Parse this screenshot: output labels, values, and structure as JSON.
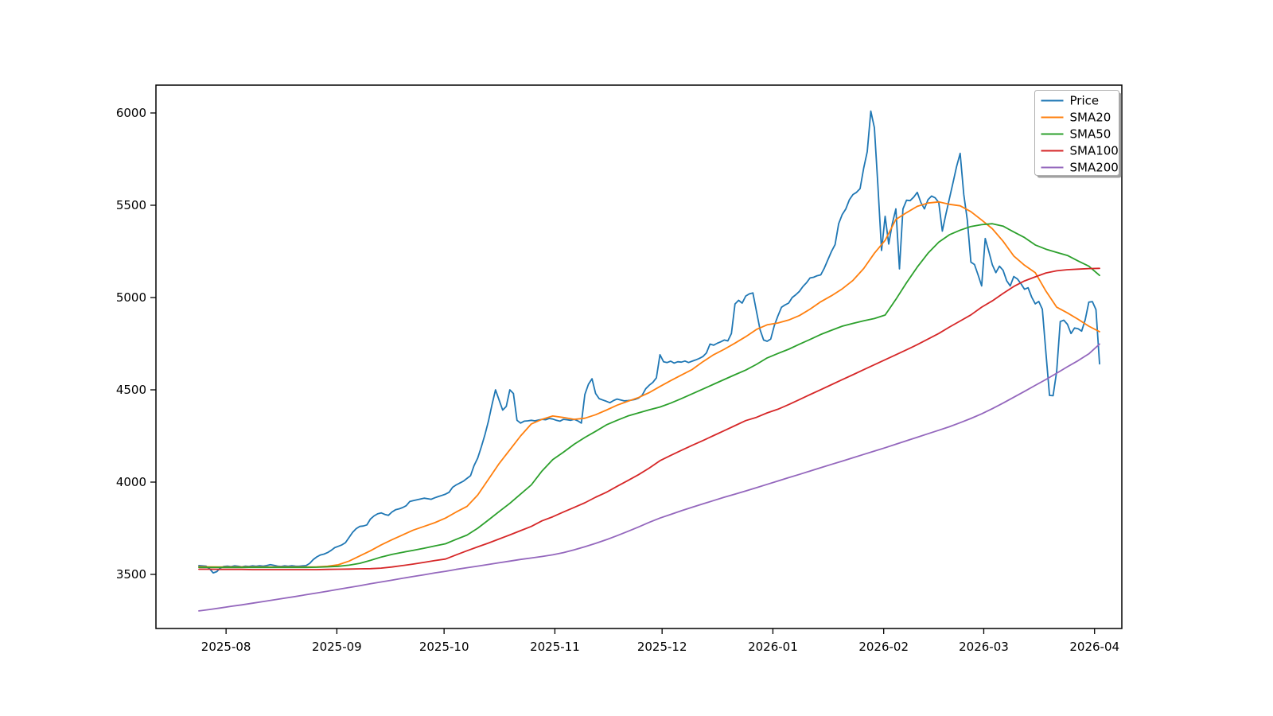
{
  "chart_data": {
    "type": "line",
    "title": "",
    "xlabel": "",
    "ylabel": "",
    "grid": false,
    "x_axis": {
      "tick_labels": [
        "2025-08",
        "2025-09",
        "2025-10",
        "2025-11",
        "2025-12",
        "2026-01",
        "2026-02",
        "2026-03",
        "2026-04"
      ],
      "tick_days": [
        7.6,
        38.6,
        68.6,
        99.6,
        129.6,
        160.6,
        191.6,
        219.6,
        250.6
      ]
    },
    "y_axis": {
      "tick_labels": [
        "3500",
        "4000",
        "4500",
        "5000",
        "5500",
        "6000"
      ],
      "tick_values": [
        3500,
        4000,
        4500,
        5000,
        5500,
        6000
      ],
      "range": [
        3207,
        6151
      ]
    },
    "legend": {
      "position": "upper-right",
      "entries": [
        "Price",
        "SMA20",
        "SMA50",
        "SMA100",
        "SMA200"
      ]
    },
    "colors": {
      "price": "#1f77b4",
      "sma20": "#ff7f0e",
      "sma50": "#2ca02c",
      "sma100": "#d62728",
      "sma200": "#9467bd",
      "spine": "#000000",
      "legend_border": "#b0b0b0",
      "legend_shadow": "#a0a0a0"
    },
    "series": [
      {
        "name": "Price",
        "color": "#1f77b4",
        "step": 1,
        "values": [
          3548,
          3546,
          3545,
          3530,
          3508,
          3515,
          3535,
          3543,
          3545,
          3542,
          3546,
          3544,
          3541,
          3545,
          3543,
          3546,
          3544,
          3547,
          3545,
          3548,
          3553,
          3549,
          3545,
          3543,
          3546,
          3544,
          3547,
          3545,
          3544,
          3546,
          3548,
          3560,
          3580,
          3595,
          3605,
          3610,
          3618,
          3630,
          3645,
          3652,
          3660,
          3672,
          3700,
          3728,
          3748,
          3760,
          3762,
          3768,
          3800,
          3817,
          3828,
          3833,
          3825,
          3820,
          3838,
          3850,
          3855,
          3862,
          3872,
          3895,
          3900,
          3904,
          3908,
          3913,
          3910,
          3907,
          3915,
          3922,
          3928,
          3935,
          3945,
          3972,
          3985,
          3995,
          4005,
          4020,
          4035,
          4090,
          4130,
          4190,
          4255,
          4330,
          4420,
          4500,
          4445,
          4390,
          4410,
          4500,
          4480,
          4335,
          4320,
          4330,
          4332,
          4335,
          4332,
          4336,
          4340,
          4338,
          4345,
          4342,
          4335,
          4330,
          4340,
          4338,
          4335,
          4340,
          4332,
          4320,
          4475,
          4530,
          4560,
          4480,
          4452,
          4445,
          4438,
          4430,
          4442,
          4450,
          4445,
          4440,
          4442,
          4444,
          4448,
          4455,
          4470,
          4505,
          4525,
          4540,
          4565,
          4690,
          4652,
          4648,
          4655,
          4645,
          4652,
          4650,
          4656,
          4648,
          4655,
          4662,
          4670,
          4680,
          4700,
          4748,
          4742,
          4752,
          4760,
          4770,
          4765,
          4805,
          4965,
          4985,
          4970,
          5008,
          5020,
          5025,
          4925,
          4826,
          4770,
          4763,
          4775,
          4848,
          4900,
          4947,
          4960,
          4970,
          5000,
          5015,
          5033,
          5060,
          5080,
          5106,
          5110,
          5118,
          5123,
          5160,
          5205,
          5250,
          5287,
          5400,
          5450,
          5480,
          5530,
          5558,
          5570,
          5590,
          5700,
          5790,
          6010,
          5920,
          5600,
          5255,
          5440,
          5290,
          5400,
          5480,
          5155,
          5480,
          5527,
          5525,
          5544,
          5570,
          5515,
          5480,
          5530,
          5550,
          5540,
          5515,
          5360,
          5450,
          5536,
          5622,
          5710,
          5781,
          5560,
          5420,
          5192,
          5179,
          5123,
          5063,
          5320,
          5250,
          5178,
          5135,
          5170,
          5148,
          5092,
          5063,
          5114,
          5101,
          5075,
          5045,
          5053,
          5002,
          4966,
          4979,
          4936,
          4700,
          4470,
          4468,
          4600,
          4870,
          4877,
          4855,
          4805,
          4835,
          4831,
          4818,
          4880,
          4975,
          4978,
          4934,
          4641
        ]
      },
      {
        "name": "SMA20",
        "color": "#ff7f0e",
        "step": 3,
        "values": [
          3542,
          3541,
          3540,
          3540,
          3540,
          3540,
          3540,
          3540,
          3540,
          3540,
          3540,
          3541,
          3544,
          3552,
          3572,
          3600,
          3628,
          3660,
          3688,
          3714,
          3740,
          3760,
          3780,
          3805,
          3838,
          3868,
          3930,
          4015,
          4100,
          4175,
          4250,
          4315,
          4340,
          4358,
          4350,
          4340,
          4346,
          4365,
          4390,
          4417,
          4438,
          4458,
          4485,
          4518,
          4550,
          4580,
          4610,
          4652,
          4690,
          4720,
          4753,
          4788,
          4827,
          4852,
          4862,
          4878,
          4902,
          4937,
          4977,
          5010,
          5047,
          5093,
          5157,
          5240,
          5310,
          5423,
          5460,
          5494,
          5512,
          5518,
          5505,
          5497,
          5465,
          5420,
          5373,
          5305,
          5225,
          5175,
          5135,
          5035,
          4948,
          4917,
          4882,
          4845,
          4815
        ]
      },
      {
        "name": "SMA50",
        "color": "#2ca02c",
        "step": 3,
        "values": [
          3538,
          3538,
          3538,
          3538,
          3538,
          3538,
          3538,
          3538,
          3538,
          3538,
          3538,
          3539,
          3541,
          3544,
          3550,
          3560,
          3576,
          3594,
          3608,
          3620,
          3630,
          3642,
          3654,
          3666,
          3690,
          3713,
          3750,
          3795,
          3840,
          3885,
          3935,
          3985,
          4060,
          4122,
          4162,
          4205,
          4242,
          4275,
          4310,
          4335,
          4358,
          4375,
          4392,
          4407,
          4428,
          4452,
          4478,
          4504,
          4530,
          4556,
          4582,
          4607,
          4638,
          4673,
          4697,
          4720,
          4747,
          4773,
          4800,
          4823,
          4845,
          4860,
          4874,
          4886,
          4905,
          4990,
          5080,
          5165,
          5240,
          5300,
          5340,
          5365,
          5385,
          5395,
          5400,
          5387,
          5355,
          5325,
          5285,
          5262,
          5245,
          5228,
          5198,
          5170,
          5120
        ]
      },
      {
        "name": "SMA100",
        "color": "#d62728",
        "step": 3,
        "values": [
          3528,
          3528,
          3527,
          3527,
          3527,
          3526,
          3526,
          3526,
          3526,
          3526,
          3526,
          3526,
          3527,
          3528,
          3529,
          3530,
          3531,
          3534,
          3540,
          3548,
          3556,
          3565,
          3575,
          3583,
          3606,
          3628,
          3649,
          3670,
          3692,
          3714,
          3737,
          3760,
          3790,
          3812,
          3838,
          3863,
          3888,
          3918,
          3945,
          3977,
          4008,
          4040,
          4076,
          4116,
          4145,
          4172,
          4199,
          4225,
          4252,
          4279,
          4306,
          4333,
          4351,
          4375,
          4395,
          4420,
          4447,
          4474,
          4501,
          4528,
          4555,
          4582,
          4609,
          4636,
          4663,
          4690,
          4717,
          4745,
          4775,
          4805,
          4840,
          4873,
          4906,
          4948,
          4982,
          5022,
          5060,
          5090,
          5112,
          5133,
          5145,
          5151,
          5154,
          5157,
          5158
        ]
      },
      {
        "name": "SMA200",
        "color": "#9467bd",
        "step": 3,
        "values": [
          3302,
          3310,
          3318,
          3327,
          3335,
          3344,
          3353,
          3362,
          3371,
          3380,
          3390,
          3399,
          3409,
          3419,
          3429,
          3439,
          3449,
          3459,
          3469,
          3479,
          3489,
          3498,
          3508,
          3517,
          3527,
          3536,
          3545,
          3554,
          3563,
          3572,
          3581,
          3589,
          3597,
          3606,
          3618,
          3633,
          3650,
          3668,
          3688,
          3710,
          3733,
          3757,
          3782,
          3805,
          3825,
          3845,
          3864,
          3882,
          3900,
          3918,
          3935,
          3952,
          3970,
          3988,
          4006,
          4024,
          4042,
          4060,
          4078,
          4096,
          4114,
          4132,
          4150,
          4168,
          4186,
          4205,
          4224,
          4243,
          4262,
          4281,
          4300,
          4322,
          4345,
          4370,
          4398,
          4428,
          4460,
          4492,
          4524,
          4556,
          4590,
          4625,
          4658,
          4695,
          4748
        ]
      }
    ]
  }
}
